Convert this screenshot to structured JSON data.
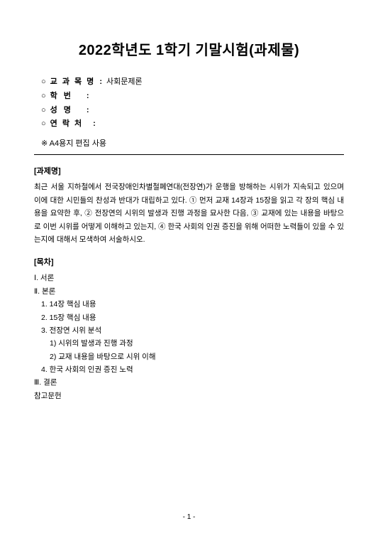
{
  "title": "2022학년도 1학기 기말시험(과제물)",
  "info": {
    "course_label": "교 과 목 명",
    "course_value": "사회문제론",
    "id_label": "학",
    "id_label2": "번",
    "name_label": "성",
    "name_label2": "명",
    "contact_label": "연 락 처"
  },
  "note": "※ A4용지 편집 사용",
  "task_heading": "[과제명]",
  "task_body": "최근 서울 지하철에서 전국장애인차별철폐연대(전장연)가 운행을 방해하는 시위가 지속되고 있으며 이에 대한 시민들의 찬성과 반대가 대립하고 있다. ① 먼저 교재 14장과 15장을 읽고 각 장의 핵심 내용을 요약한 후, ② 전장연의 시위의 발생과 진행 과정을 묘사한 다음, ③ 교재에 있는 내용을 바탕으로 이번 시위를 어떻게 이해하고 있는지, ④ 한국 사회의 인권 증진을 위해 어떠한 노력들이 있을 수 있는지에 대해서 모색하여 서술하시오.",
  "toc_heading": "[목차]",
  "toc": [
    {
      "level": "l1",
      "text": "Ⅰ. 서론"
    },
    {
      "level": "l1",
      "text": "Ⅱ. 본론"
    },
    {
      "level": "l2",
      "text": "1. 14장 핵심 내용"
    },
    {
      "level": "l2",
      "text": "2. 15장 핵심 내용"
    },
    {
      "level": "l2",
      "text": "3. 전장연 시위 분석"
    },
    {
      "level": "l3",
      "text": "1) 시위의 발생과 진행 과정"
    },
    {
      "level": "l3",
      "text": "2) 교재 내용을 바탕으로 시위 이해"
    },
    {
      "level": "l2",
      "text": "4. 한국 사회의 인권 증진 노력"
    },
    {
      "level": "l1",
      "text": "Ⅲ. 결론"
    },
    {
      "level": "l1",
      "text": "참고문헌"
    }
  ],
  "page_number": "- 1 -"
}
